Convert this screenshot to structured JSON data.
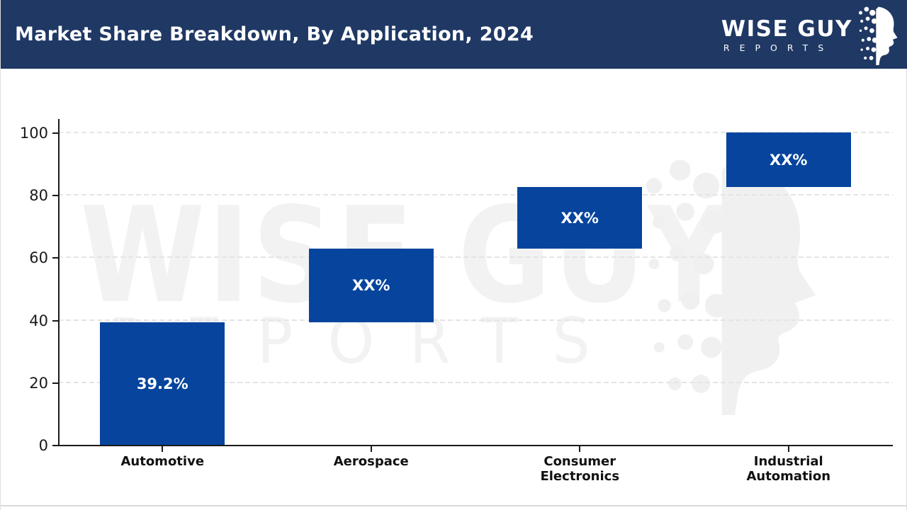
{
  "header": {
    "title": "Market Share Breakdown, By Application, 2024",
    "logo": {
      "line1": "WISE GUY",
      "line2": "REPORTS"
    }
  },
  "watermark": {
    "line1": "WISE GUY",
    "line2": "REPORTS"
  },
  "chart_data": {
    "type": "bar",
    "subtype": "waterfall-segments",
    "title": "Market Share Breakdown, By Application, 2024",
    "categories": [
      "Automotive",
      "Aerospace",
      "Consumer Electronics",
      "Industrial Automation"
    ],
    "category_label_lines": [
      [
        "Automotive"
      ],
      [
        "Aerospace"
      ],
      [
        "Consumer",
        "Electronics"
      ],
      [
        "Industrial",
        "Automation"
      ]
    ],
    "segments": [
      {
        "category": "Automotive",
        "start": 0,
        "end": 39.2,
        "label": "39.2%"
      },
      {
        "category": "Aerospace",
        "start": 39.2,
        "end": 62.7,
        "label": "XX%"
      },
      {
        "category": "Consumer Electronics",
        "start": 62.7,
        "end": 82.5,
        "label": "XX%"
      },
      {
        "category": "Industrial Automation",
        "start": 82.5,
        "end": 100,
        "label": "XX%"
      }
    ],
    "xlabel": "",
    "ylabel": "",
    "yticks": [
      0,
      20,
      40,
      60,
      80,
      100
    ],
    "ylim": [
      0,
      104
    ],
    "grid": "horizontal-dashed",
    "legend": "none",
    "colors": {
      "bar": "#06449D",
      "bar_label": "#ffffff",
      "axis": "#1a1a1a",
      "gridline": "#e4e4e4",
      "header_bg": "#1F3864",
      "header_text": "#ffffff",
      "watermark": "#f2f2f2"
    }
  }
}
